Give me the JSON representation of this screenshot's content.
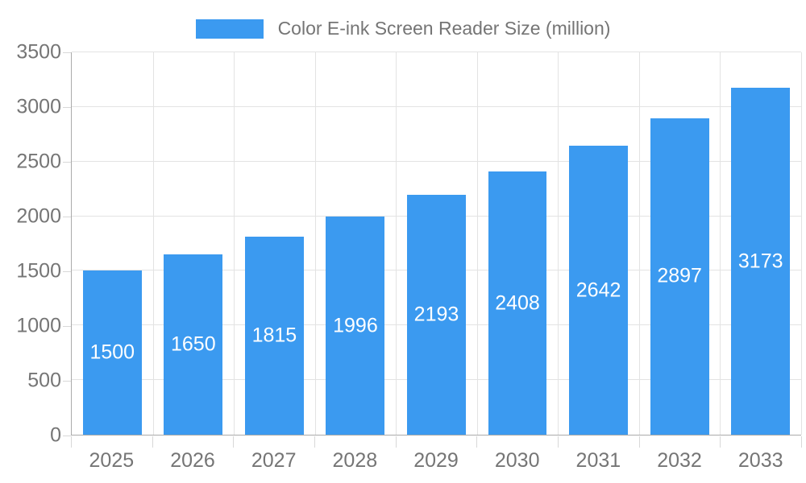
{
  "legend": {
    "label": "Color E-ink Screen Reader Size (million)"
  },
  "chart_data": {
    "type": "bar",
    "title": "Color E-ink Screen Reader Size (million)",
    "series_name": "Color E-ink Screen Reader Size (million)",
    "categories": [
      "2025",
      "2026",
      "2027",
      "2028",
      "2029",
      "2030",
      "2031",
      "2032",
      "2033"
    ],
    "values": [
      1500,
      1650,
      1815,
      1996,
      2193,
      2408,
      2642,
      2897,
      3173
    ],
    "bar_labels": [
      "1500",
      "1650",
      "1815",
      "1996",
      "2193",
      "2408",
      "2642",
      "2897",
      "3173"
    ],
    "xlabel": "",
    "ylabel": "",
    "ylim": [
      0,
      3500
    ],
    "ytick_step": 500,
    "yticks": [
      0,
      500,
      1000,
      1500,
      2000,
      2500,
      3000,
      3500
    ],
    "grid": true,
    "legend_position": "top-center",
    "bar_label_position": "center-inside",
    "colors": {
      "bar": "#3B9AF0",
      "bar_label": "#FFFFFF",
      "axis_text": "#757575",
      "grid_line": "#E3E3E3",
      "axis_line": "#AAAAAA",
      "tick": "#D8D8D8",
      "background": "#FFFFFF"
    }
  }
}
